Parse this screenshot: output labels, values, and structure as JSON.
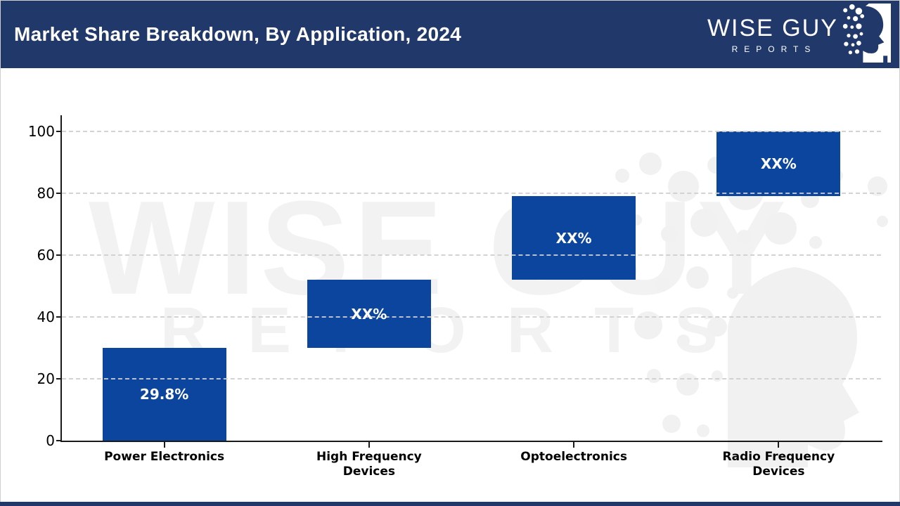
{
  "header": {
    "title": "Market Share Breakdown, By Application, 2024",
    "logo": {
      "line1": "WISE GUY",
      "line2": "REPORTS"
    }
  },
  "watermark": {
    "line1": "WISE GUY",
    "line2": "REPORTS"
  },
  "colors": {
    "header_navy": "#21386b",
    "bar_blue": "#0c459e",
    "gridline_gray": "#cfcfcf",
    "watermark_gray": "#f2f2f2"
  },
  "chart_data": {
    "type": "bar",
    "subtype": "waterfall",
    "title": "Market Share Breakdown, By Application, 2024",
    "categories": [
      "Power Electronics",
      "High Frequency Devices",
      "Optoelectronics",
      "Radio Frequency Devices"
    ],
    "bars": [
      {
        "category": "Power Electronics",
        "category_lines": [
          "Power Electronics"
        ],
        "start": 0,
        "end": 30,
        "label": "29.8%"
      },
      {
        "category": "High Frequency Devices",
        "category_lines": [
          "High Frequency",
          "Devices"
        ],
        "start": 30,
        "end": 52,
        "label": "XX%"
      },
      {
        "category": "Optoelectronics",
        "category_lines": [
          "Optoelectronics"
        ],
        "start": 52,
        "end": 79,
        "label": "XX%"
      },
      {
        "category": "Radio Frequency Devices",
        "category_lines": [
          "Radio Frequency",
          "Devices"
        ],
        "start": 79,
        "end": 100,
        "label": "XX%"
      }
    ],
    "xlabel": "",
    "ylabel": "",
    "ylim": [
      0,
      100
    ],
    "yticks": [
      0,
      20,
      40,
      60,
      80,
      100
    ],
    "grid": "horizontal-dashed-above-bars",
    "legend": "none",
    "bar_color": "#0c459e",
    "bar_label_color": "#ffffff"
  }
}
